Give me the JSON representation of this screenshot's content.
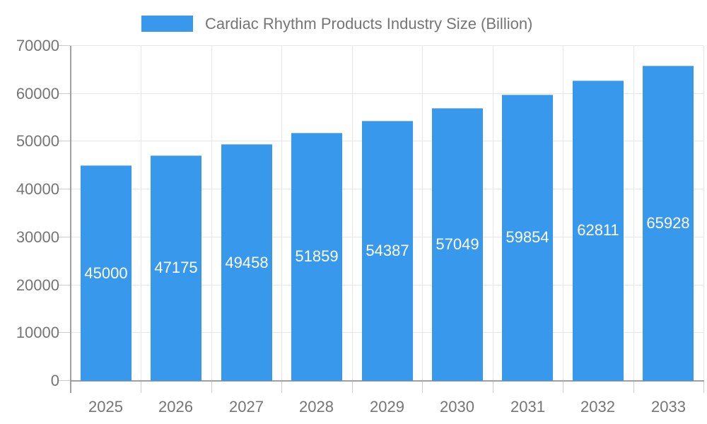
{
  "legend": {
    "label": "Cardiac Rhythm Products Industry Size (Billion)"
  },
  "chart_data": {
    "type": "bar",
    "title": "Cardiac Rhythm Products Industry Size (Billion)",
    "categories": [
      "2025",
      "2026",
      "2027",
      "2028",
      "2029",
      "2030",
      "2031",
      "2032",
      "2033"
    ],
    "values": [
      45000,
      47175,
      49458,
      51859,
      54387,
      57049,
      59854,
      62811,
      65928
    ],
    "bar_labels": [
      "45000",
      "47175",
      "49458",
      "51859",
      "54387",
      "57049",
      "59854",
      "62811",
      "65928"
    ],
    "xlabel": "",
    "ylabel": "",
    "ylim": [
      0,
      70000
    ],
    "yticks": [
      0,
      10000,
      20000,
      30000,
      40000,
      50000,
      60000,
      70000
    ],
    "ytick_labels": [
      "0",
      "10000",
      "20000",
      "30000",
      "40000",
      "50000",
      "60000",
      "70000"
    ],
    "grid": true,
    "legend_position": "top",
    "bar_label_position": "inside-center",
    "colors": {
      "bar": "#3898EC",
      "bar_label_text": "#FFFFFF",
      "axis_text": "#757575",
      "legend_text": "#757575",
      "gridline": "#E6E6E6",
      "tick": "#CCCCCC",
      "axis_line": "#A0A0A0",
      "background": "#FFFFFF"
    }
  }
}
